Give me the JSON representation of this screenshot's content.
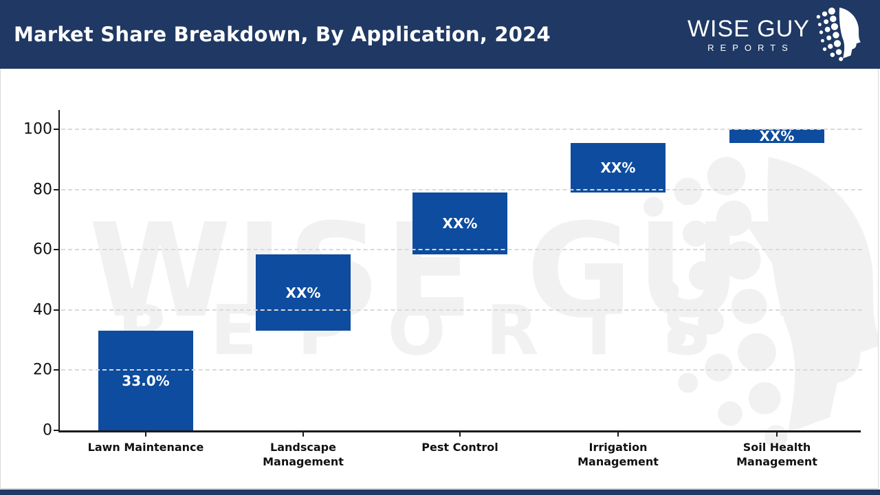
{
  "header": {
    "title": "Market Share Breakdown, By Application, 2024",
    "logo": {
      "line1": "WISE GUY",
      "line2": "REPORTS"
    }
  },
  "watermark": {
    "line1": "WISE GUY",
    "line2": "REPORTS"
  },
  "colors": {
    "header_bg": "#1f3864",
    "bar_blue": "#0d4c9e",
    "gridline": "#d9d9d9",
    "axis": "#1a1a1a",
    "watermark": "#f1f1f1",
    "bar_label_text": "#ffffff"
  },
  "chart_data": {
    "type": "bar",
    "subtype": "waterfall",
    "title": "Market Share Breakdown, By Application, 2024",
    "categories": [
      "Lawn Maintenance",
      "Landscape\nManagement",
      "Pest Control",
      "Irrigation\nManagement",
      "Soil Health\nManagement"
    ],
    "segments": [
      {
        "category": "Lawn Maintenance",
        "start": 0,
        "end": 33.0,
        "value": 33.0,
        "value_label": "33.0%"
      },
      {
        "category": "Landscape Management",
        "start": 33.0,
        "end": 58.5,
        "value": 25.5,
        "value_label": "XX%"
      },
      {
        "category": "Pest Control",
        "start": 58.5,
        "end": 79.0,
        "value": 20.5,
        "value_label": "XX%"
      },
      {
        "category": "Irrigation Management",
        "start": 79.0,
        "end": 95.5,
        "value": 16.5,
        "value_label": "XX%"
      },
      {
        "category": "Soil Health Management",
        "start": 95.5,
        "end": 100.0,
        "value": 4.5,
        "value_label": "XX%"
      }
    ],
    "ylabel": "",
    "xlabel": "",
    "yticks": [
      0,
      20,
      40,
      60,
      80,
      100
    ],
    "ylim": [
      0,
      105
    ],
    "grid": "horizontal-dashed",
    "legend": "none",
    "bar_color": "#0d4c9e"
  }
}
